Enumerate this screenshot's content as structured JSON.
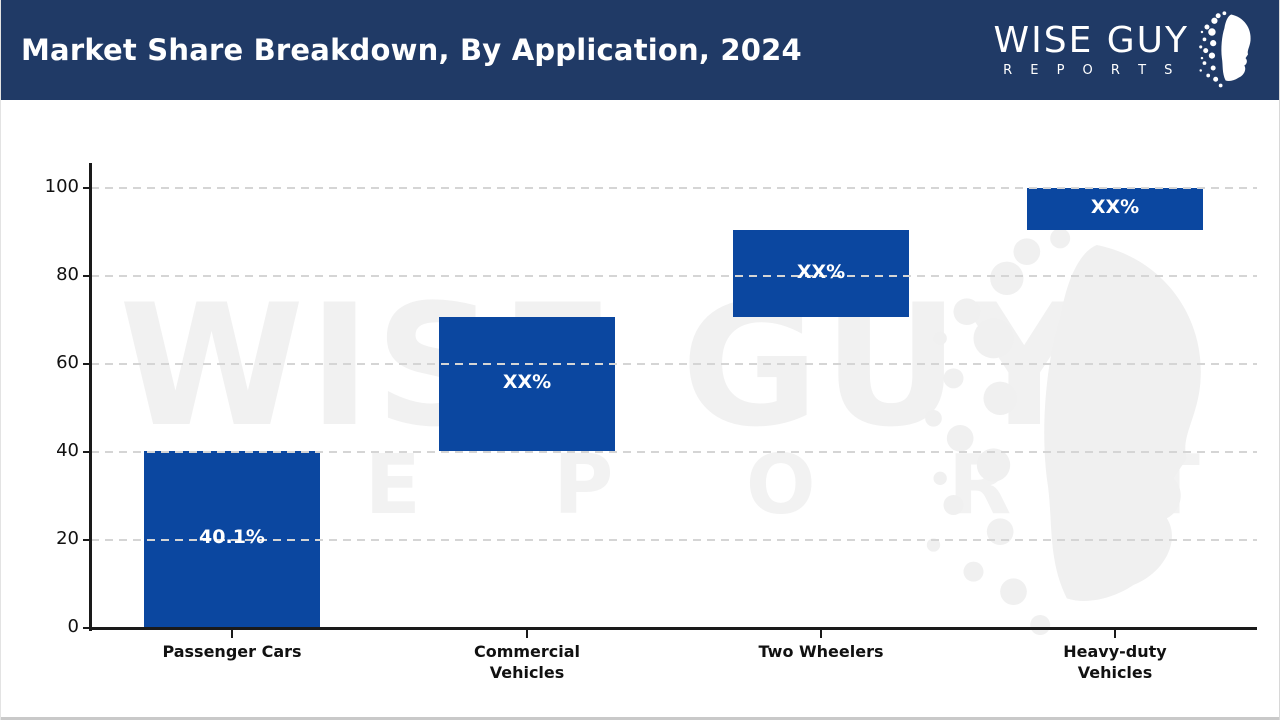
{
  "header": {
    "title": "Market Share Breakdown, By Application, 2024",
    "logo": {
      "name": "WISE GUY",
      "sub": "R E P O R T S"
    }
  },
  "watermark": {
    "line1": "WISE GUY",
    "line2": "R E P O R T S"
  },
  "chart_data": {
    "type": "bar",
    "variant": "floating-waterfall-segments",
    "title": "Market Share Breakdown, By Application, 2024",
    "categories": [
      "Passenger Cars",
      "Commercial\nVehicles",
      "Two Wheelers",
      "Heavy-duty\nVehicles"
    ],
    "series": [
      {
        "name": "Market Share (%)",
        "points": [
          {
            "category": "Passenger Cars",
            "start": 0,
            "end": 40.1,
            "label": "40.1%"
          },
          {
            "category": "Commercial Vehicles",
            "start": 40.1,
            "end": 70.5,
            "label": "XX%"
          },
          {
            "category": "Two Wheelers",
            "start": 70.5,
            "end": 90.4,
            "label": "XX%"
          },
          {
            "category": "Heavy-duty Vehicles",
            "start": 90.4,
            "end": 100,
            "label": "XX%"
          }
        ]
      }
    ],
    "xlabel": "",
    "ylabel": "",
    "ylim": [
      0,
      100
    ],
    "yticks": [
      0,
      20,
      40,
      60,
      80,
      100
    ],
    "grid": {
      "horizontal": true,
      "style": "dashed",
      "over_bars": true
    },
    "legend": "none",
    "bar_color": "#0b47a0",
    "bar_label_color": "#ffffff"
  },
  "colors": {
    "header_bg": "#203a66",
    "bar_blue": "#0b47a0",
    "gridline": "#d5d5d5",
    "axis": "#1a1a1a",
    "watermark": "#f0f0f0",
    "bottom_rule": "#c9c9c9"
  }
}
